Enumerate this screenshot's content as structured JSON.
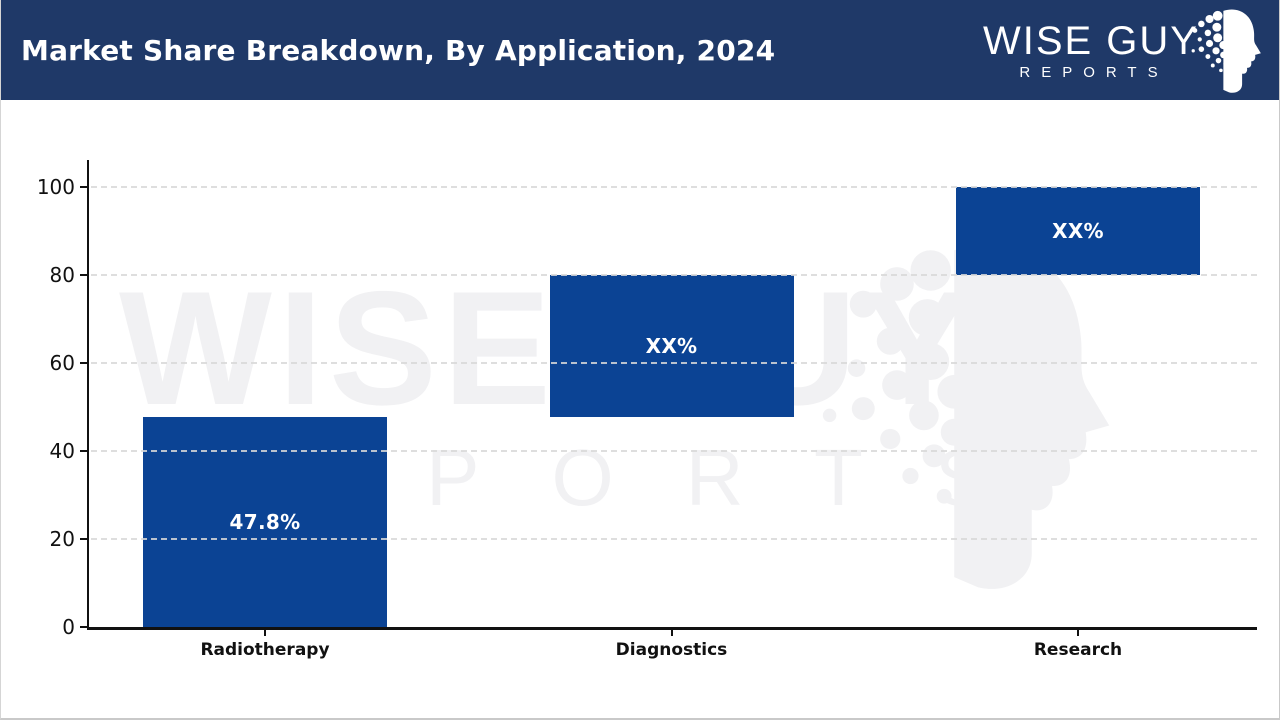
{
  "header": {
    "title": "Market Share Breakdown, By Application, 2024",
    "logo": {
      "wordmark": "WISE GUY",
      "subtext": "REPORTS"
    }
  },
  "watermark": {
    "line1": "WISE GUY",
    "line2": "REPORTS"
  },
  "colors": {
    "header_bg": "#1F3968",
    "bar": "#0B4394",
    "bar_label": "#FFFFFF",
    "gridline": "#D9D9D9",
    "axis": "#111111",
    "watermark": "#F1F1F3"
  },
  "chart_data": {
    "type": "bar",
    "subtype": "waterfall",
    "title": "Market Share Breakdown, By Application, 2024",
    "categories": [
      "Radiotherapy",
      "Diagnostics",
      "Research"
    ],
    "segments": [
      {
        "category": "Radiotherapy",
        "start": 0,
        "end": 47.8,
        "value": 47.8,
        "label": "47.8%"
      },
      {
        "category": "Diagnostics",
        "start": 47.8,
        "end": 80,
        "value": 32.2,
        "label": "XX%"
      },
      {
        "category": "Research",
        "start": 80,
        "end": 100,
        "value": 20,
        "label": "XX%"
      }
    ],
    "yticks": [
      0,
      20,
      40,
      60,
      80,
      100
    ],
    "ylim": [
      0,
      106
    ],
    "xlabel": "",
    "ylabel": "",
    "grid": "horizontal-dashed",
    "legend": "none",
    "bar_color": "#0B4394"
  }
}
